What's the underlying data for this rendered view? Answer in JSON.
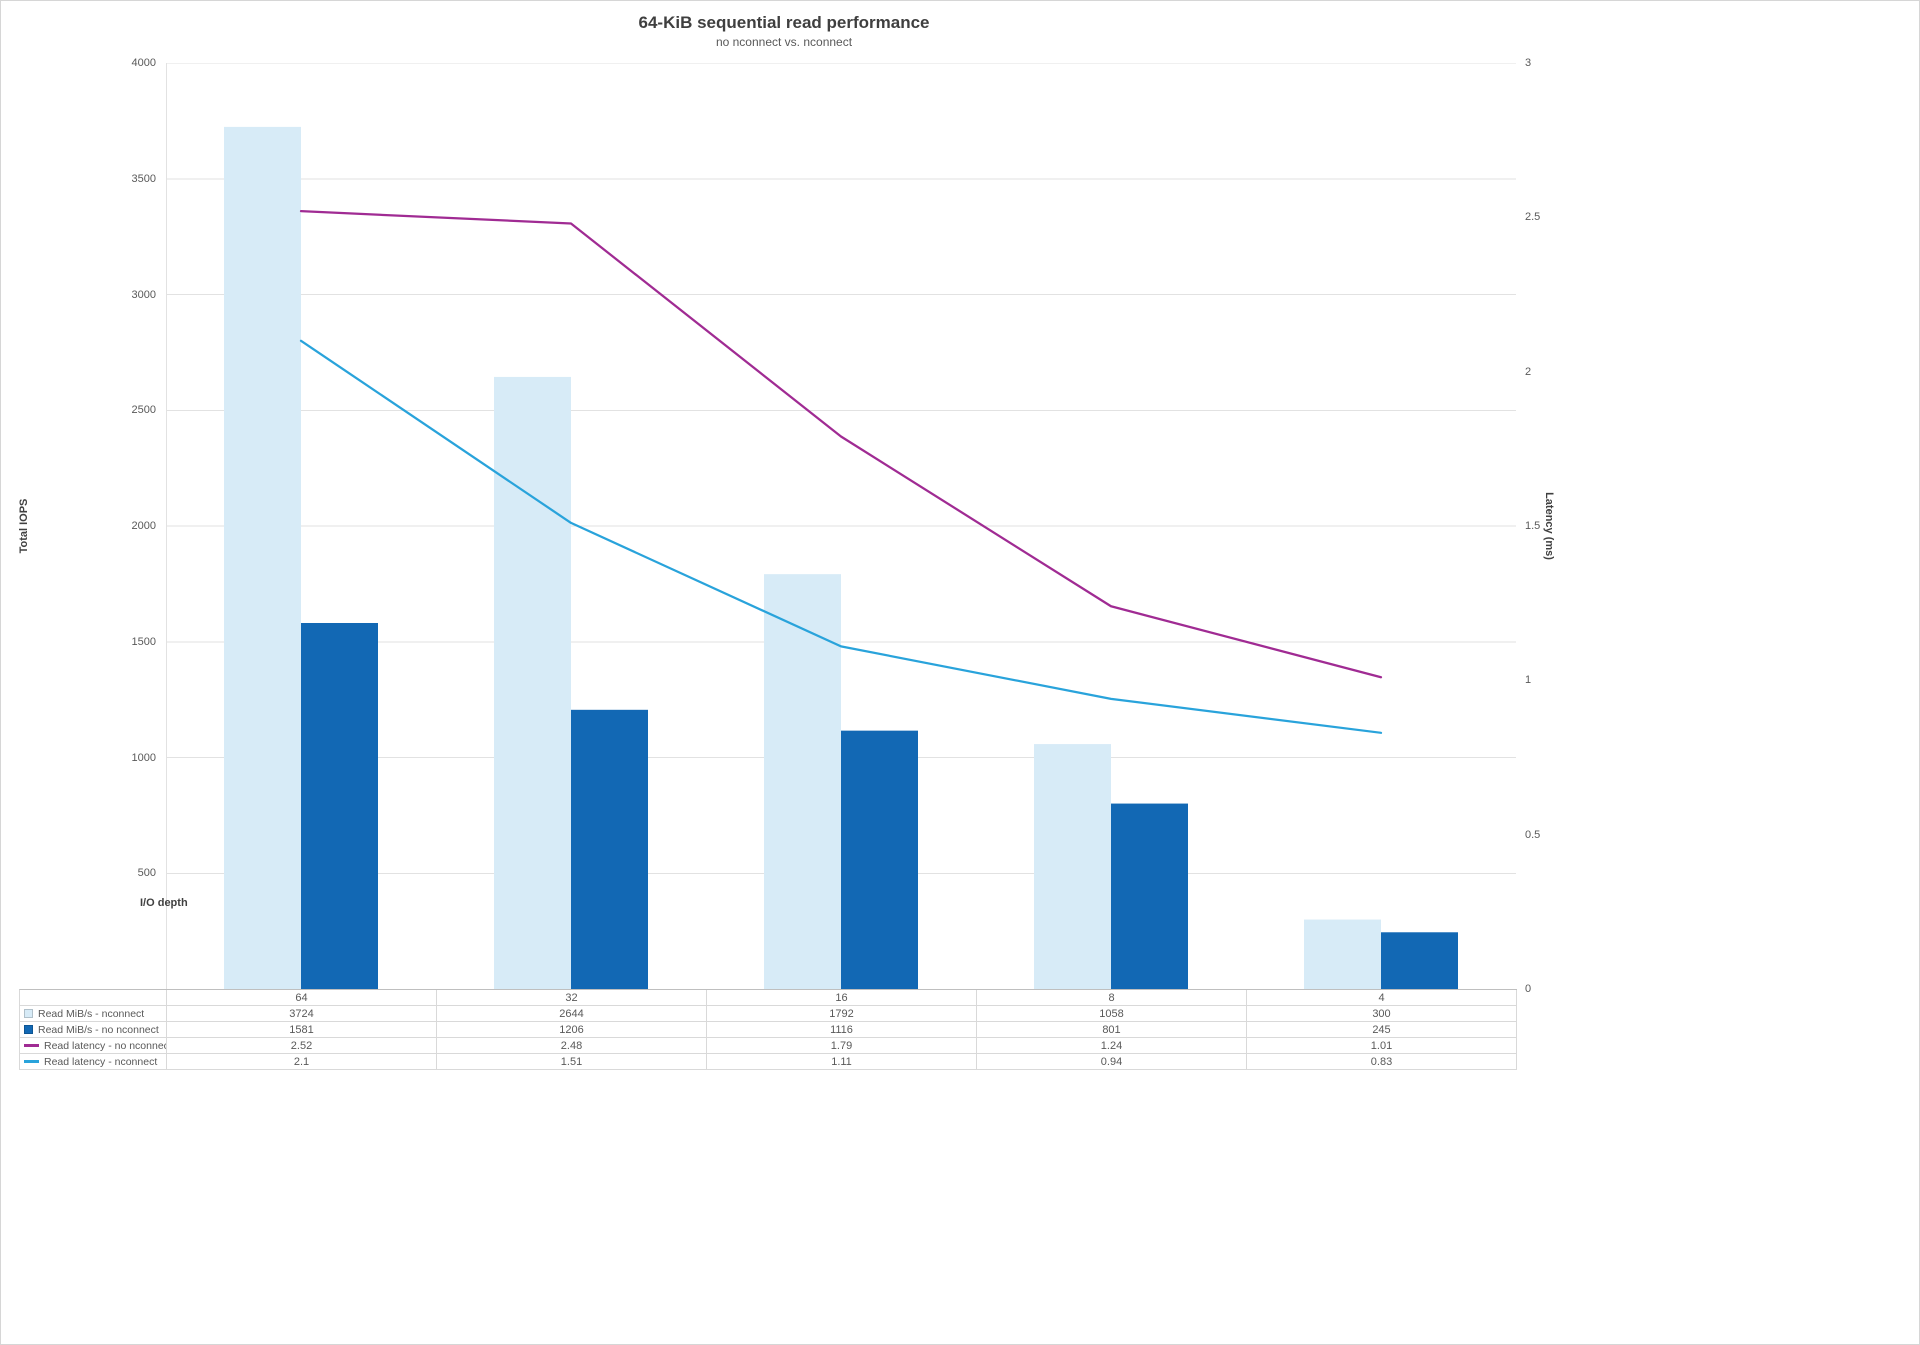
{
  "title": "64-KiB sequential read performance",
  "subtitle": "no nconnect vs. nconnect",
  "chart_data": {
    "type": "combo",
    "categories": [
      "64",
      "32",
      "16",
      "8",
      "4"
    ],
    "x_axis_title": "I/O depth",
    "left_axis": {
      "title": "Total IOPS",
      "min": 0,
      "max": 4000,
      "step": 500
    },
    "right_axis": {
      "title": "Latency (ms)",
      "min": 0,
      "max": 3,
      "step": 0.5
    },
    "grid": true,
    "legend_position": "table-left",
    "colors": {
      "bar_nconnect": "#d7ebf7",
      "bar_no_nconnect": "#1268b4",
      "line_no_nconnect": "#a02b93",
      "line_nconnect": "#29a3db",
      "gridline": "#e2e2e2"
    },
    "series": [
      {
        "name": "Read MiB/s - nconnect",
        "type": "bar",
        "axis": "left",
        "color": "#d7ebf7",
        "values": [
          3724,
          2644,
          1792,
          1058,
          300
        ]
      },
      {
        "name": "Read MiB/s - no nconnect",
        "type": "bar",
        "axis": "left",
        "color": "#1268b4",
        "values": [
          1581,
          1206,
          1116,
          801,
          245
        ]
      },
      {
        "name": "Read latency - no nconnect",
        "type": "line",
        "axis": "right",
        "color": "#a02b93",
        "values": [
          2.52,
          2.48,
          1.79,
          1.24,
          1.01
        ]
      },
      {
        "name": "Read latency - nconnect",
        "type": "line",
        "axis": "right",
        "color": "#29a3db",
        "values": [
          2.1,
          1.51,
          1.11,
          0.94,
          0.83
        ]
      }
    ]
  }
}
